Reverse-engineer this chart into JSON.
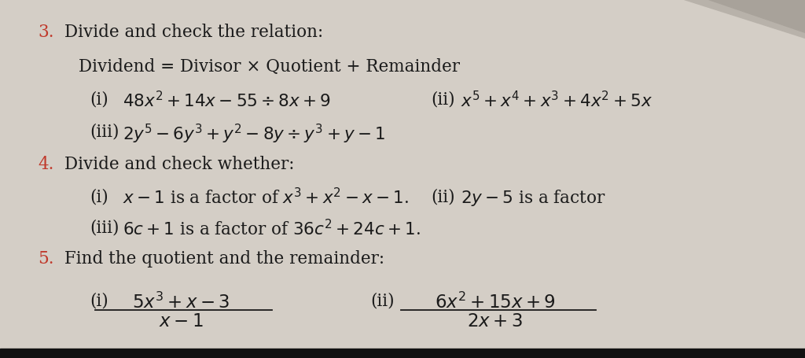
{
  "background_color": "#d4cec6",
  "text_color": "#1a1a1a",
  "number_color": "#c0392b",
  "fs": 15.5,
  "line3_heading": "3.",
  "line3_text": "Divide and check the relation:",
  "line_dividend": "Dividend = Divisor × Quotient + Remainder",
  "i_a_label": "(i)",
  "i_a_text": "$48x^2 + 14x - 55 \\div 8x + 9$",
  "ii_a_label": "(ii)",
  "ii_a_text": "$x^5 + x^4 + x^3 + 4x^2 + 5x$",
  "iii_a_label": "(iii)",
  "iii_a_text": "$2y^5 - 6y^3 + y^2 - 8y \\div y^3 + y - 1$",
  "line4_heading": "4.",
  "line4_text": "Divide and check whether:",
  "i_b_label": "(i)",
  "i_b_text": "$x - 1$ is a factor of $x^3 + x^2 - x - 1$.",
  "ii_b_label": "(ii)",
  "ii_b_text": "$2y - 5$ is a factor",
  "iii_b_label": "(iii)",
  "iii_b_text": "$6c + 1$ is a factor of $36c^2 + 24c + 1$.",
  "line5_heading": "5.",
  "line5_text": "Find the quotient and the remainder:",
  "frac1_label": "(i)",
  "frac1_num": "$5x^3 + x - 3$",
  "frac1_den": "$x - 1$",
  "frac2_label": "(ii)",
  "frac2_num": "$6x^2 + 15x + 9$",
  "frac2_den": "$2x + 3$",
  "bottom_stripe_color": "#111111"
}
